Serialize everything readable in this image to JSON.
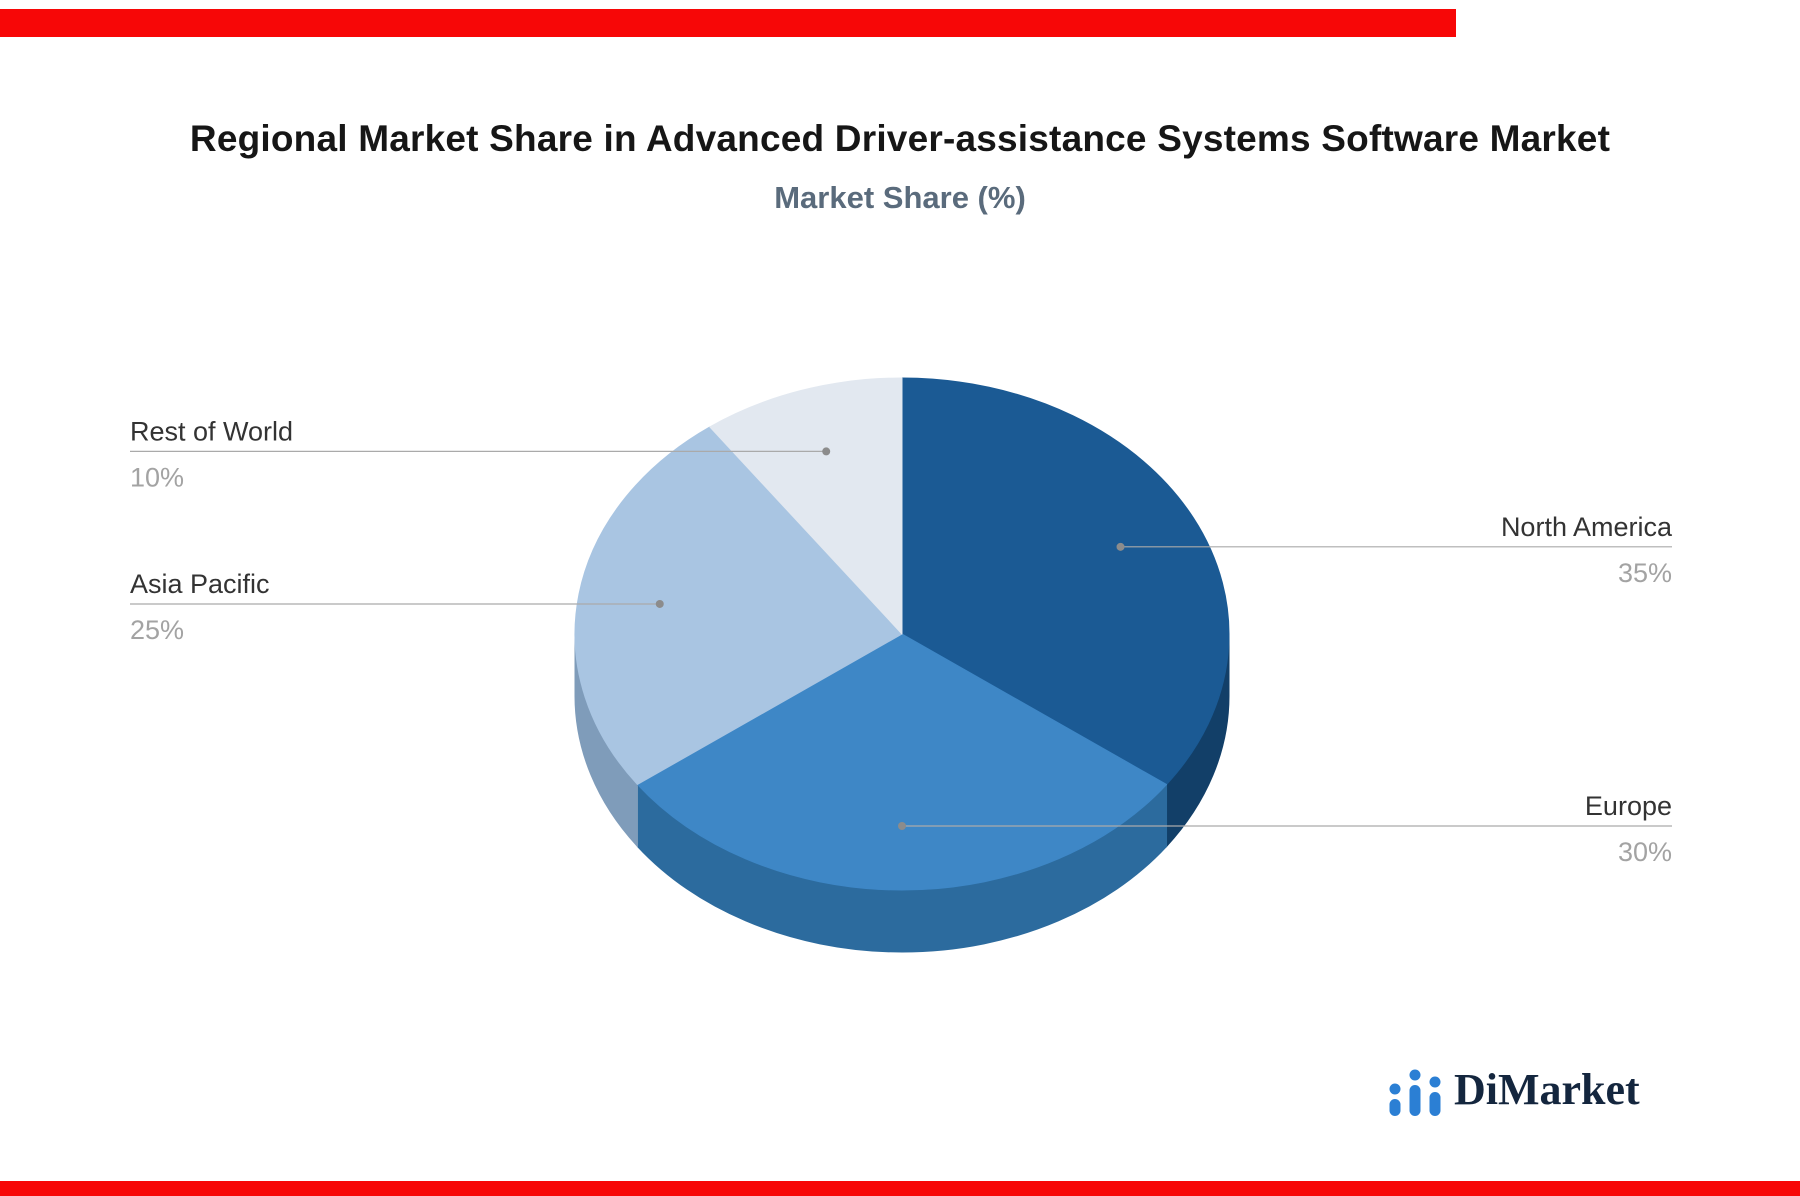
{
  "chart_data": {
    "type": "pie",
    "style": "3d",
    "title": "Regional Market Share in Advanced Driver-assistance Systems Software Market",
    "subtitle": "Market Share (%)",
    "unit": "%",
    "labels": [
      "North America",
      "Europe",
      "Asia Pacific",
      "Rest of World"
    ],
    "values": [
      35,
      30,
      25,
      10
    ],
    "display_values": [
      "35%",
      "30%",
      "25%",
      "10%"
    ],
    "colors": [
      "#1b5a94",
      "#3e87c6",
      "#a9c5e2",
      "#e2e8f0"
    ],
    "side_colors": [
      "#123f68",
      "#2c6b9e",
      "#7f9cba",
      "#b6c2d0"
    ],
    "start_angle": "top",
    "direction": "clockwise",
    "legend": "none",
    "label_layout": "callout-lines"
  },
  "brand": {
    "logo_text": "DiMarket",
    "logo_icon": "bar-chart-icon",
    "logo_icon_color": "#2b7fd4",
    "logo_text_color": "#14263e"
  },
  "decor": {
    "top_bar_color": "#f70707",
    "bottom_bar_color": "#f70707"
  }
}
